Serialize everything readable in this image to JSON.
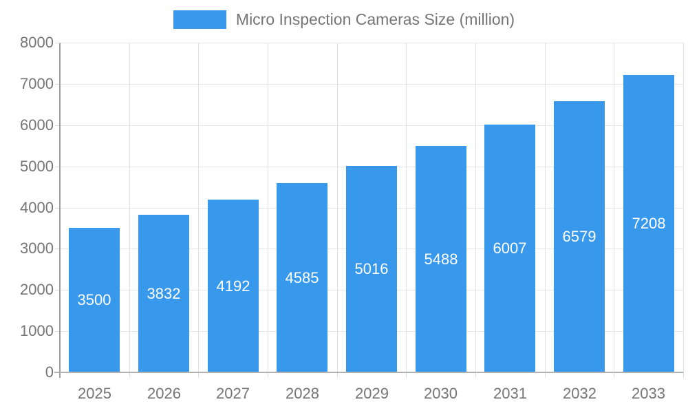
{
  "legend": {
    "label": "Micro Inspection Cameras Size (million)"
  },
  "colors": {
    "bar": "#3899ec",
    "grid_horizontal": "#e6e6e6",
    "grid_vertical": "#e0e0e0",
    "axis_line": "#9e9e9e",
    "x_axis_line": "#b1b1b1",
    "axis_text": "#757575",
    "bar_label_text": "#ffffff",
    "background": "#ffffff"
  },
  "chart_data": {
    "type": "bar",
    "title": "",
    "xlabel": "",
    "ylabel": "",
    "categories": [
      "2025",
      "2026",
      "2027",
      "2028",
      "2029",
      "2030",
      "2031",
      "2032",
      "2033"
    ],
    "series": [
      {
        "name": "Micro Inspection Cameras Size (million)",
        "values": [
          3500,
          3832,
          4192,
          4585,
          5016,
          5488,
          6007,
          6579,
          7208
        ]
      }
    ],
    "bar_value_labels": [
      "3500",
      "3832",
      "4192",
      "4585",
      "5016",
      "5488",
      "6007",
      "6579",
      "7208"
    ],
    "y_tick_labels": [
      "0",
      "1000",
      "2000",
      "3000",
      "4000",
      "5000",
      "6000",
      "7000",
      "8000"
    ],
    "ylim": [
      0,
      8000
    ],
    "ytick_interval": 1000,
    "grid": true,
    "legend_position": "top",
    "value_label_position": "inside-center"
  }
}
